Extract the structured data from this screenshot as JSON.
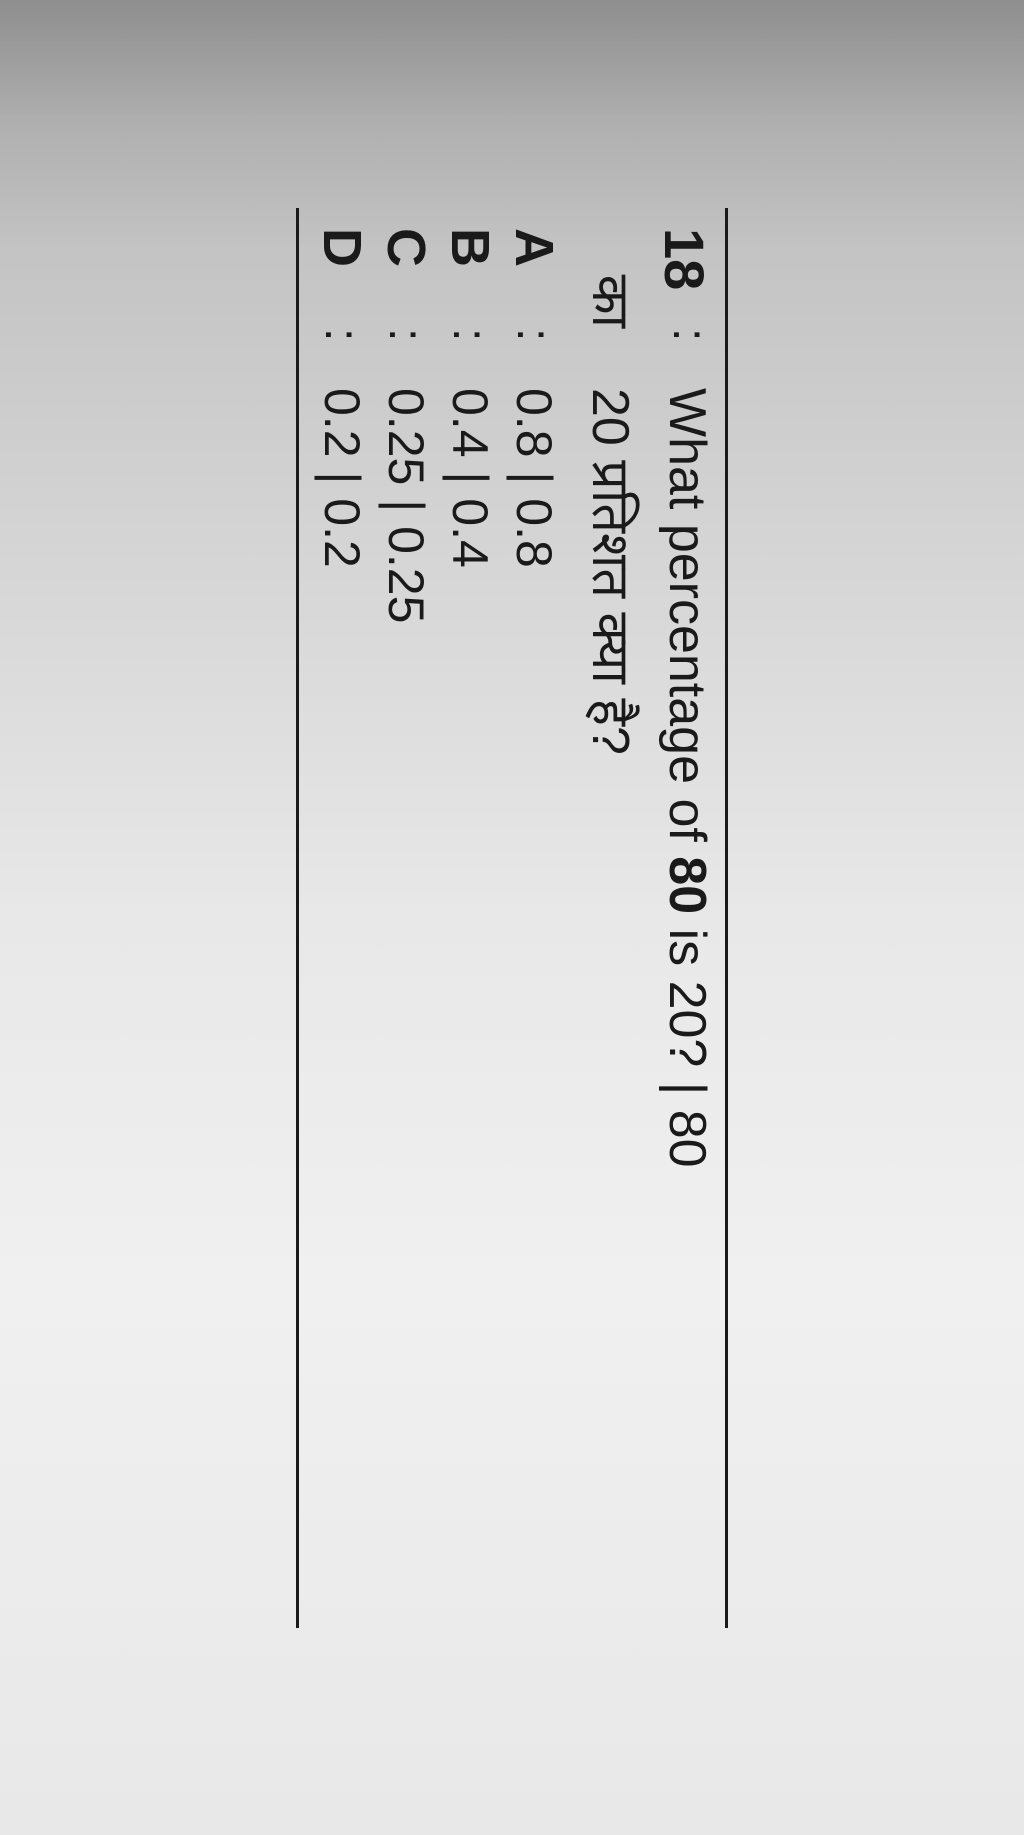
{
  "question": {
    "number": "18",
    "english_text_before": "What percentage of ",
    "english_bold": "80",
    "english_text_after": " is 20? | 80",
    "hindi_prefix": "का",
    "hindi_text": "20 प्रतिशत क्या है?"
  },
  "options": [
    {
      "letter": "A",
      "text": "0.8 | 0.8"
    },
    {
      "letter": "B",
      "text": "0.4 | 0.4"
    },
    {
      "letter": "C",
      "text": "0.25 | 0.25"
    },
    {
      "letter": "D",
      "text": "0.2 | 0.2"
    }
  ],
  "colors": {
    "text": "#1a1a1a",
    "line": "#1a1a1a",
    "bg_light": "#f0f0f0",
    "bg_dark": "#b8b8b8"
  },
  "typography": {
    "question_number_size": 56,
    "question_text_size": 52,
    "option_letter_size": 54,
    "option_text_size": 50
  }
}
